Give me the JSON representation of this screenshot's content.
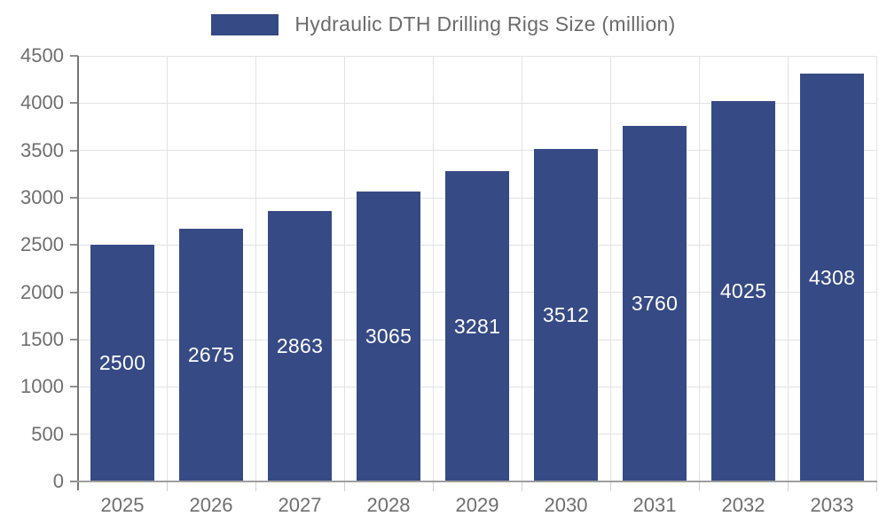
{
  "legend": {
    "label": "Hydraulic DTH Drilling Rigs Size (million)"
  },
  "colors": {
    "bar": "#364a85",
    "legend_text": "#6b6b6b",
    "tick_label": "#6e6e6e",
    "y_axis": "#757575",
    "x_axis": "#9e9e9e",
    "gridline": "#e2e2e2",
    "value_label": "#ffffff",
    "background": "#ffffff"
  },
  "chart_data": {
    "type": "bar",
    "title": "",
    "legend": "Hydraulic DTH Drilling Rigs Size (million)",
    "legend_position": "top",
    "categories": [
      "2025",
      "2026",
      "2027",
      "2028",
      "2029",
      "2030",
      "2031",
      "2032",
      "2033"
    ],
    "values": [
      2500,
      2675,
      2863,
      3065,
      3281,
      3512,
      3760,
      4025,
      4308
    ],
    "value_labels": [
      "2500",
      "2675",
      "2863",
      "3065",
      "3281",
      "3512",
      "3760",
      "4025",
      "4308"
    ],
    "xlabel": "",
    "ylabel": "",
    "ylim": [
      0,
      4500
    ],
    "ytick_step": 500,
    "ytick_labels": [
      "0",
      "500",
      "1000",
      "1500",
      "2000",
      "2500",
      "3000",
      "3500",
      "4000",
      "4500"
    ],
    "grid": true,
    "value_label_position": "center-of-bar"
  }
}
